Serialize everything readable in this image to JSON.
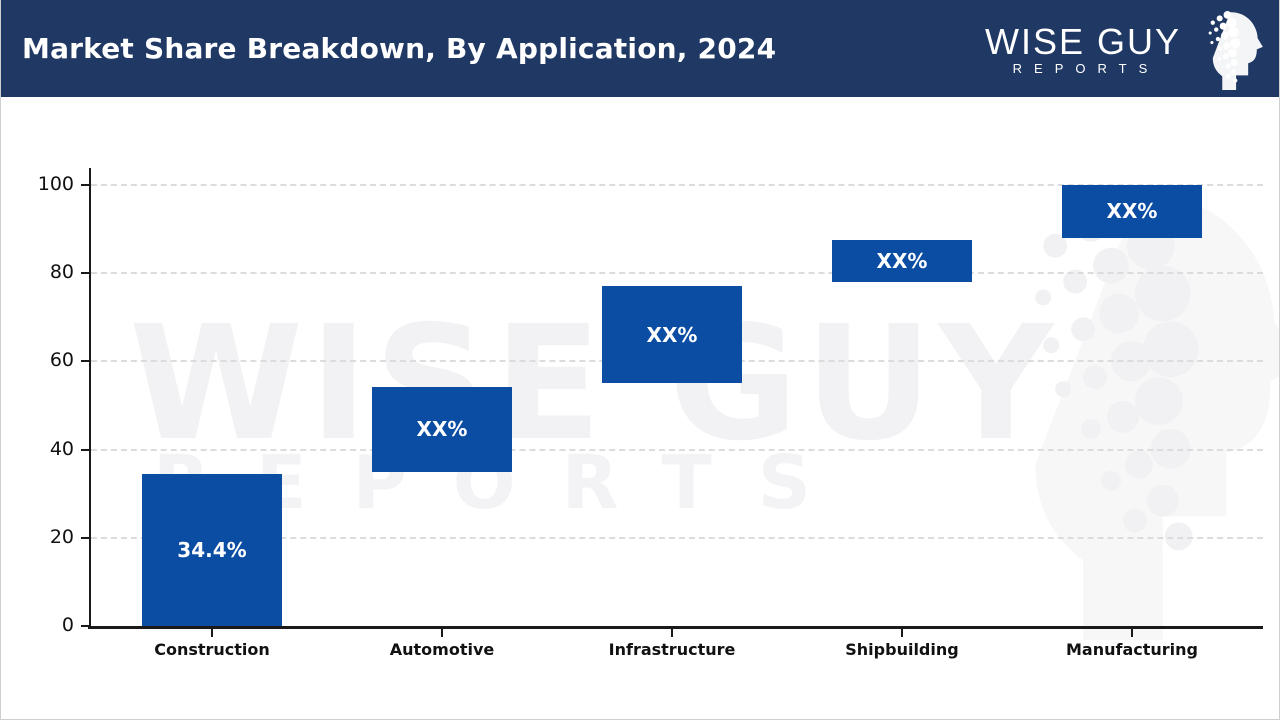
{
  "header": {
    "title": "Market Share Breakdown, By Application, 2024",
    "background_color": "#203864",
    "logo": {
      "line1": "WISE GUY",
      "line2": "REPORTS"
    }
  },
  "watermark": {
    "line1": "WISE GUY",
    "line2": "REPORTS"
  },
  "colors": {
    "bar": "#0b4da2",
    "header_navy": "#203864",
    "gridline": "#dcdcdc",
    "axis": "#1a1a1a",
    "bar_label_text": "#ffffff"
  },
  "chart_data": {
    "type": "bar",
    "subtype": "waterfall",
    "title": "Market Share Breakdown, By Application, 2024",
    "xlabel": "",
    "ylabel": "",
    "ylim": [
      0,
      100
    ],
    "yticks": [
      0,
      20,
      40,
      60,
      80,
      100
    ],
    "grid": "horizontal-dashed",
    "legend": "none",
    "bar_color": "#0b4da2",
    "categories": [
      "Construction",
      "Automotive",
      "Infrastructure",
      "Shipbuilding",
      "Manufacturing"
    ],
    "segments": [
      {
        "category": "Construction",
        "start": 0,
        "end": 34.4,
        "label": "34.4%"
      },
      {
        "category": "Automotive",
        "start": 35,
        "end": 54.3,
        "label": "XX%"
      },
      {
        "category": "Infrastructure",
        "start": 55,
        "end": 77,
        "label": "XX%"
      },
      {
        "category": "Shipbuilding",
        "start": 78,
        "end": 87.6,
        "label": "XX%"
      },
      {
        "category": "Manufacturing",
        "start": 88,
        "end": 100,
        "label": "XX%"
      }
    ]
  }
}
